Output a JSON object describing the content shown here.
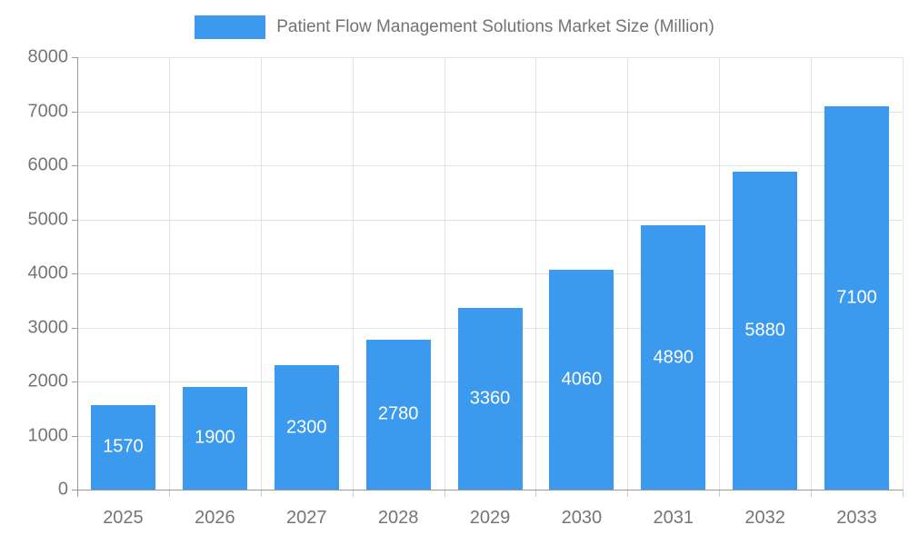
{
  "chart_data": {
    "type": "bar",
    "title": "Patient Flow Management Solutions Market Size (Million)",
    "categories": [
      "2025",
      "2026",
      "2027",
      "2028",
      "2029",
      "2030",
      "2031",
      "2032",
      "2033"
    ],
    "values": [
      1570,
      1900,
      2300,
      2780,
      3360,
      4060,
      4890,
      5880,
      7100
    ],
    "xlabel": "",
    "ylabel": "",
    "ylim": [
      0,
      8000
    ],
    "ytick_step": 1000,
    "grid": "horizontal and vertical light gray gridlines",
    "legend_position": "top-center",
    "colors": {
      "bar": "#3C9AEE",
      "bar_value_label": "#ffffff",
      "axis_text": "#757575",
      "title_text": "#737373",
      "gridline": "#e3e3e3",
      "axis_line": "#999999",
      "background": "#ffffff"
    }
  }
}
